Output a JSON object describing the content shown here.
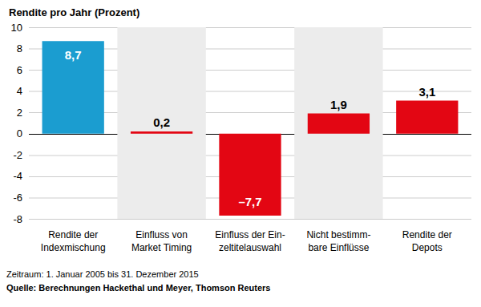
{
  "chart_data": {
    "type": "bar",
    "title": "Rendite pro Jahr (Prozent)",
    "categories": [
      "Rendite der\nIndexmischung",
      "Einfluss von\nMarket Timing",
      "Einfluss der Ein-\nzeltitelauswahl",
      "Nicht bestimm-\nbare Einflüsse",
      "Rendite der\nDepots"
    ],
    "values": [
      8.7,
      0.2,
      -7.7,
      1.9,
      3.1
    ],
    "value_labels": [
      "8,7",
      "0,2",
      "–7,7",
      "1,9",
      "3,1"
    ],
    "colors": [
      "#1b9dd0",
      "#e30613",
      "#e30613",
      "#e30613",
      "#e30613"
    ],
    "ylim": [
      -8,
      10
    ],
    "yticks": [
      -8,
      -6,
      -4,
      -2,
      0,
      2,
      4,
      6,
      8,
      10
    ],
    "grid": true,
    "data_labels": true,
    "annotations": [
      "Zeitraum: 1. Januar 2005 bis 31. Dezember 2015",
      "Quelle: Berechnungen Hackethal und Meyer, Thomson Reuters"
    ]
  }
}
